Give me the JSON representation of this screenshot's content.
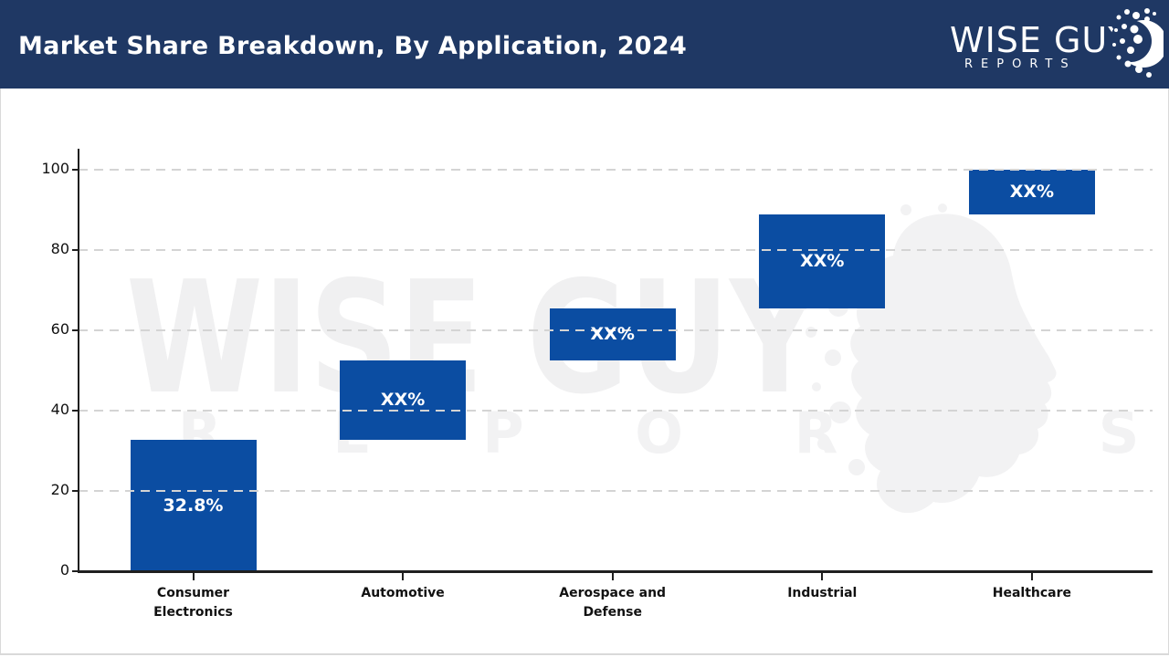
{
  "header": {
    "title": "Market Share Breakdown, By Application, 2024",
    "logo": {
      "brand_top": "WISE GUY",
      "brand_bottom": "REPORTS"
    }
  },
  "watermark": {
    "line1": "WISE GUY",
    "line2": "R E P O R T S"
  },
  "colors": {
    "header_bg": "#1f3864",
    "bar": "#0b4da2",
    "grid": "#d4d4d4",
    "axis": "#1f1f1f",
    "watermark": "#f2f2f3"
  },
  "chart_data": {
    "type": "bar",
    "subtype": "waterfall",
    "title": "Market Share Breakdown, By Application, 2024",
    "xlabel": "",
    "ylabel": "",
    "ylim": [
      0,
      105
    ],
    "yticks": [
      0,
      20,
      40,
      60,
      80,
      100
    ],
    "grid": "dashed-horizontal",
    "legend": "none",
    "bar_color": "#0b4da2",
    "categories": [
      "Consumer Electronics",
      "Automotive",
      "Aerospace and Defense",
      "Industrial",
      "Healthcare"
    ],
    "category_lines": [
      [
        "Consumer",
        "Electronics"
      ],
      [
        "Automotive"
      ],
      [
        "Aerospace and",
        "Defense"
      ],
      [
        "Industrial"
      ],
      [
        "Healthcare"
      ]
    ],
    "segments": [
      {
        "category": "Consumer Electronics",
        "start": 0,
        "end": 32.8,
        "label": "32.8%"
      },
      {
        "category": "Automotive",
        "start": 32.8,
        "end": 52.5,
        "label": "XX%"
      },
      {
        "category": "Aerospace and Defense",
        "start": 52.5,
        "end": 65.5,
        "label": "XX%"
      },
      {
        "category": "Industrial",
        "start": 65.5,
        "end": 88.9,
        "label": "XX%"
      },
      {
        "category": "Healthcare",
        "start": 88.9,
        "end": 100,
        "label": "XX%"
      }
    ]
  }
}
